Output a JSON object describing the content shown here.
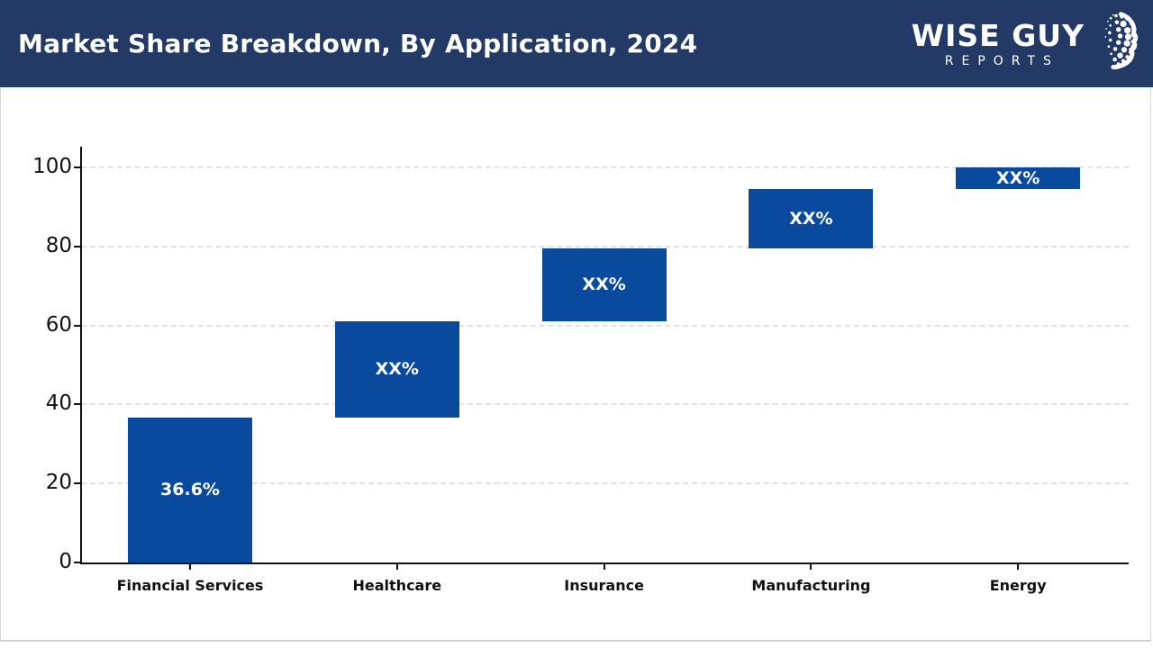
{
  "header": {
    "title": "Market Share Breakdown, By Application, 2024",
    "logo": {
      "line1": "WISE GUY",
      "line2": "REPORTS"
    }
  },
  "watermark": {
    "line1": "WISE GUY",
    "line2": "REPORTS"
  },
  "colors": {
    "header_bg": "#233A66",
    "bar": "#0A4A9E",
    "bar_label_text": "#FFFFFF",
    "grid": "#E2E2E2",
    "axis": "#111111",
    "watermark": "#F0F0F0",
    "title_text": "#FFFFFF"
  },
  "chart_data": {
    "type": "waterfall",
    "title": "Market Share Breakdown, By Application, 2024",
    "categories": [
      "Financial Services",
      "Healthcare",
      "Insurance",
      "Manufacturing",
      "Energy"
    ],
    "segments": [
      {
        "category": "Financial Services",
        "start": 0,
        "end": 36.6,
        "label": "36.6%"
      },
      {
        "category": "Healthcare",
        "start": 36.6,
        "end": 61.1,
        "label": "XX%"
      },
      {
        "category": "Insurance",
        "start": 61.1,
        "end": 79.4,
        "label": "XX%"
      },
      {
        "category": "Manufacturing",
        "start": 79.4,
        "end": 94.5,
        "label": "XX%"
      },
      {
        "category": "Energy",
        "start": 94.5,
        "end": 100,
        "label": "XX%"
      }
    ],
    "ylabel": "",
    "xlabel": "",
    "yticks": [
      0,
      20,
      40,
      60,
      80,
      100
    ],
    "ylim": [
      0,
      105
    ],
    "grid": "horizontal-dashed",
    "legend": "none",
    "bar_value_unit": "%"
  }
}
